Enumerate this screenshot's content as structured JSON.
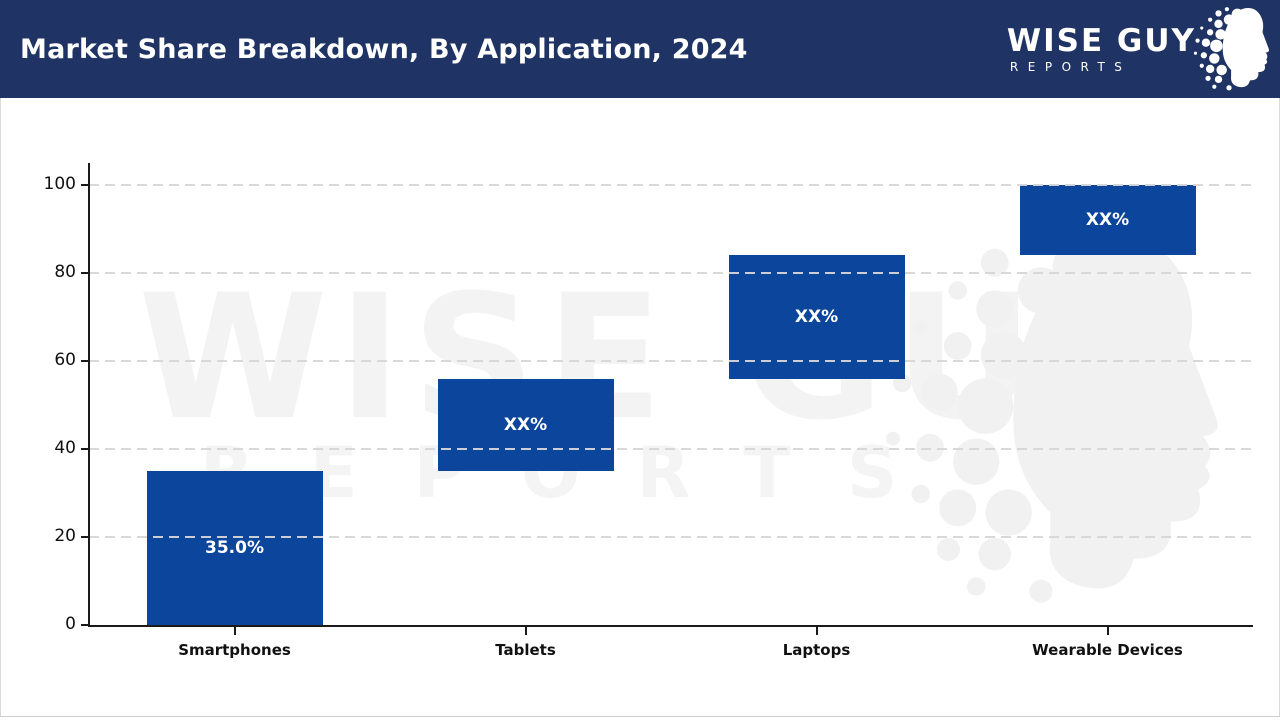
{
  "header": {
    "title": "Market Share Breakdown, By Application, 2024",
    "logo": {
      "line1": "WISE GUY",
      "line2": "REPORTS",
      "head_icon": "dotted-head-profile"
    }
  },
  "watermark": {
    "line1": "WISE GUY",
    "line2": "REPORTS",
    "head_icon": "dotted-head-profile"
  },
  "chart_data": {
    "type": "bar",
    "subtype": "waterfall-stacked-percentage",
    "title": "Market Share Breakdown, By Application, 2024",
    "categories": [
      "Smartphones",
      "Tablets",
      "Laptops",
      "Wearable Devices"
    ],
    "bars": [
      {
        "category": "Smartphones",
        "start": 0,
        "end": 35,
        "label": "35.0%"
      },
      {
        "category": "Tablets",
        "start": 35,
        "end": 56,
        "label": "XX%"
      },
      {
        "category": "Laptops",
        "start": 56,
        "end": 84,
        "label": "XX%"
      },
      {
        "category": "Wearable Devices",
        "start": 84,
        "end": 100,
        "label": "XX%"
      }
    ],
    "xlabel": "",
    "ylabel": "",
    "ylim": [
      0,
      100
    ],
    "yticks": [
      0,
      20,
      40,
      60,
      80,
      100
    ],
    "grid": "horizontal-dashed",
    "legend": null
  },
  "colors": {
    "header_bg": "#1f3464",
    "bar": "#0c459c",
    "bar_label": "#ffffff",
    "grid": "#d6d6d6",
    "axis": "#1a1a1a",
    "watermark": "#f2f2f2"
  }
}
